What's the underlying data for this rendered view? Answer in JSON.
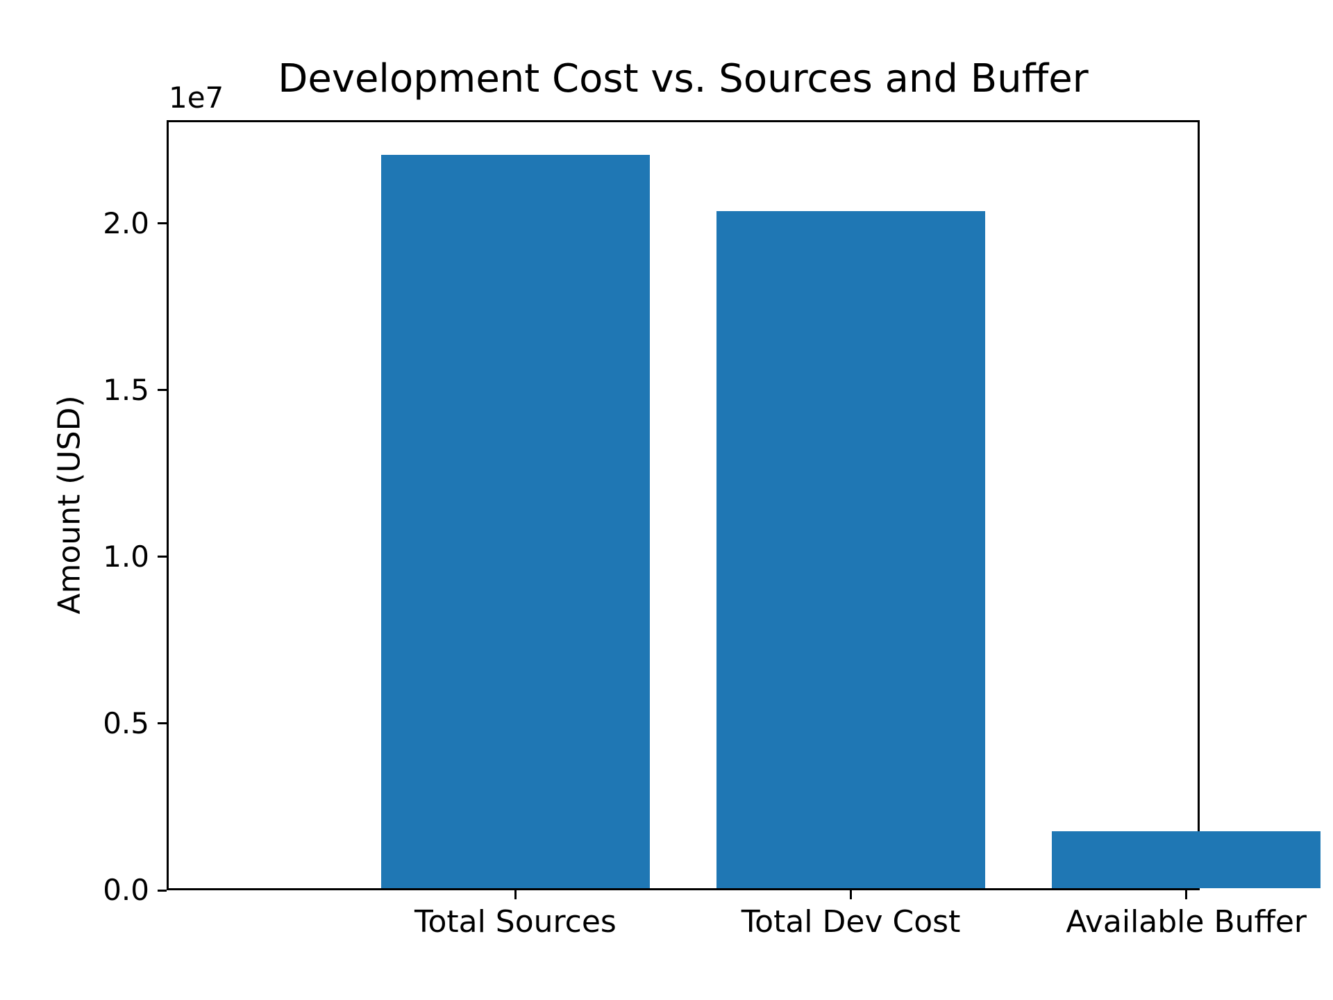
{
  "chart_data": {
    "type": "bar",
    "title": "Development Cost vs. Sources and Buffer",
    "categories": [
      "Total Sources",
      "Total Dev Cost",
      "Available Buffer"
    ],
    "values": [
      22000000,
      20300000,
      1700000
    ],
    "xlabel": "",
    "ylabel": "Amount (USD)",
    "y_offset_label": "1e7",
    "ytick_labels": [
      "0.0",
      "0.5",
      "1.0",
      "1.5",
      "2.0"
    ],
    "ytick_values": [
      0,
      5000000,
      10000000,
      15000000,
      20000000
    ],
    "ylim": [
      0,
      23100000
    ],
    "grid": false,
    "legend": false,
    "bar_color": "#1f77b4",
    "axis_color": "#000000",
    "background_color": "#ffffff"
  }
}
